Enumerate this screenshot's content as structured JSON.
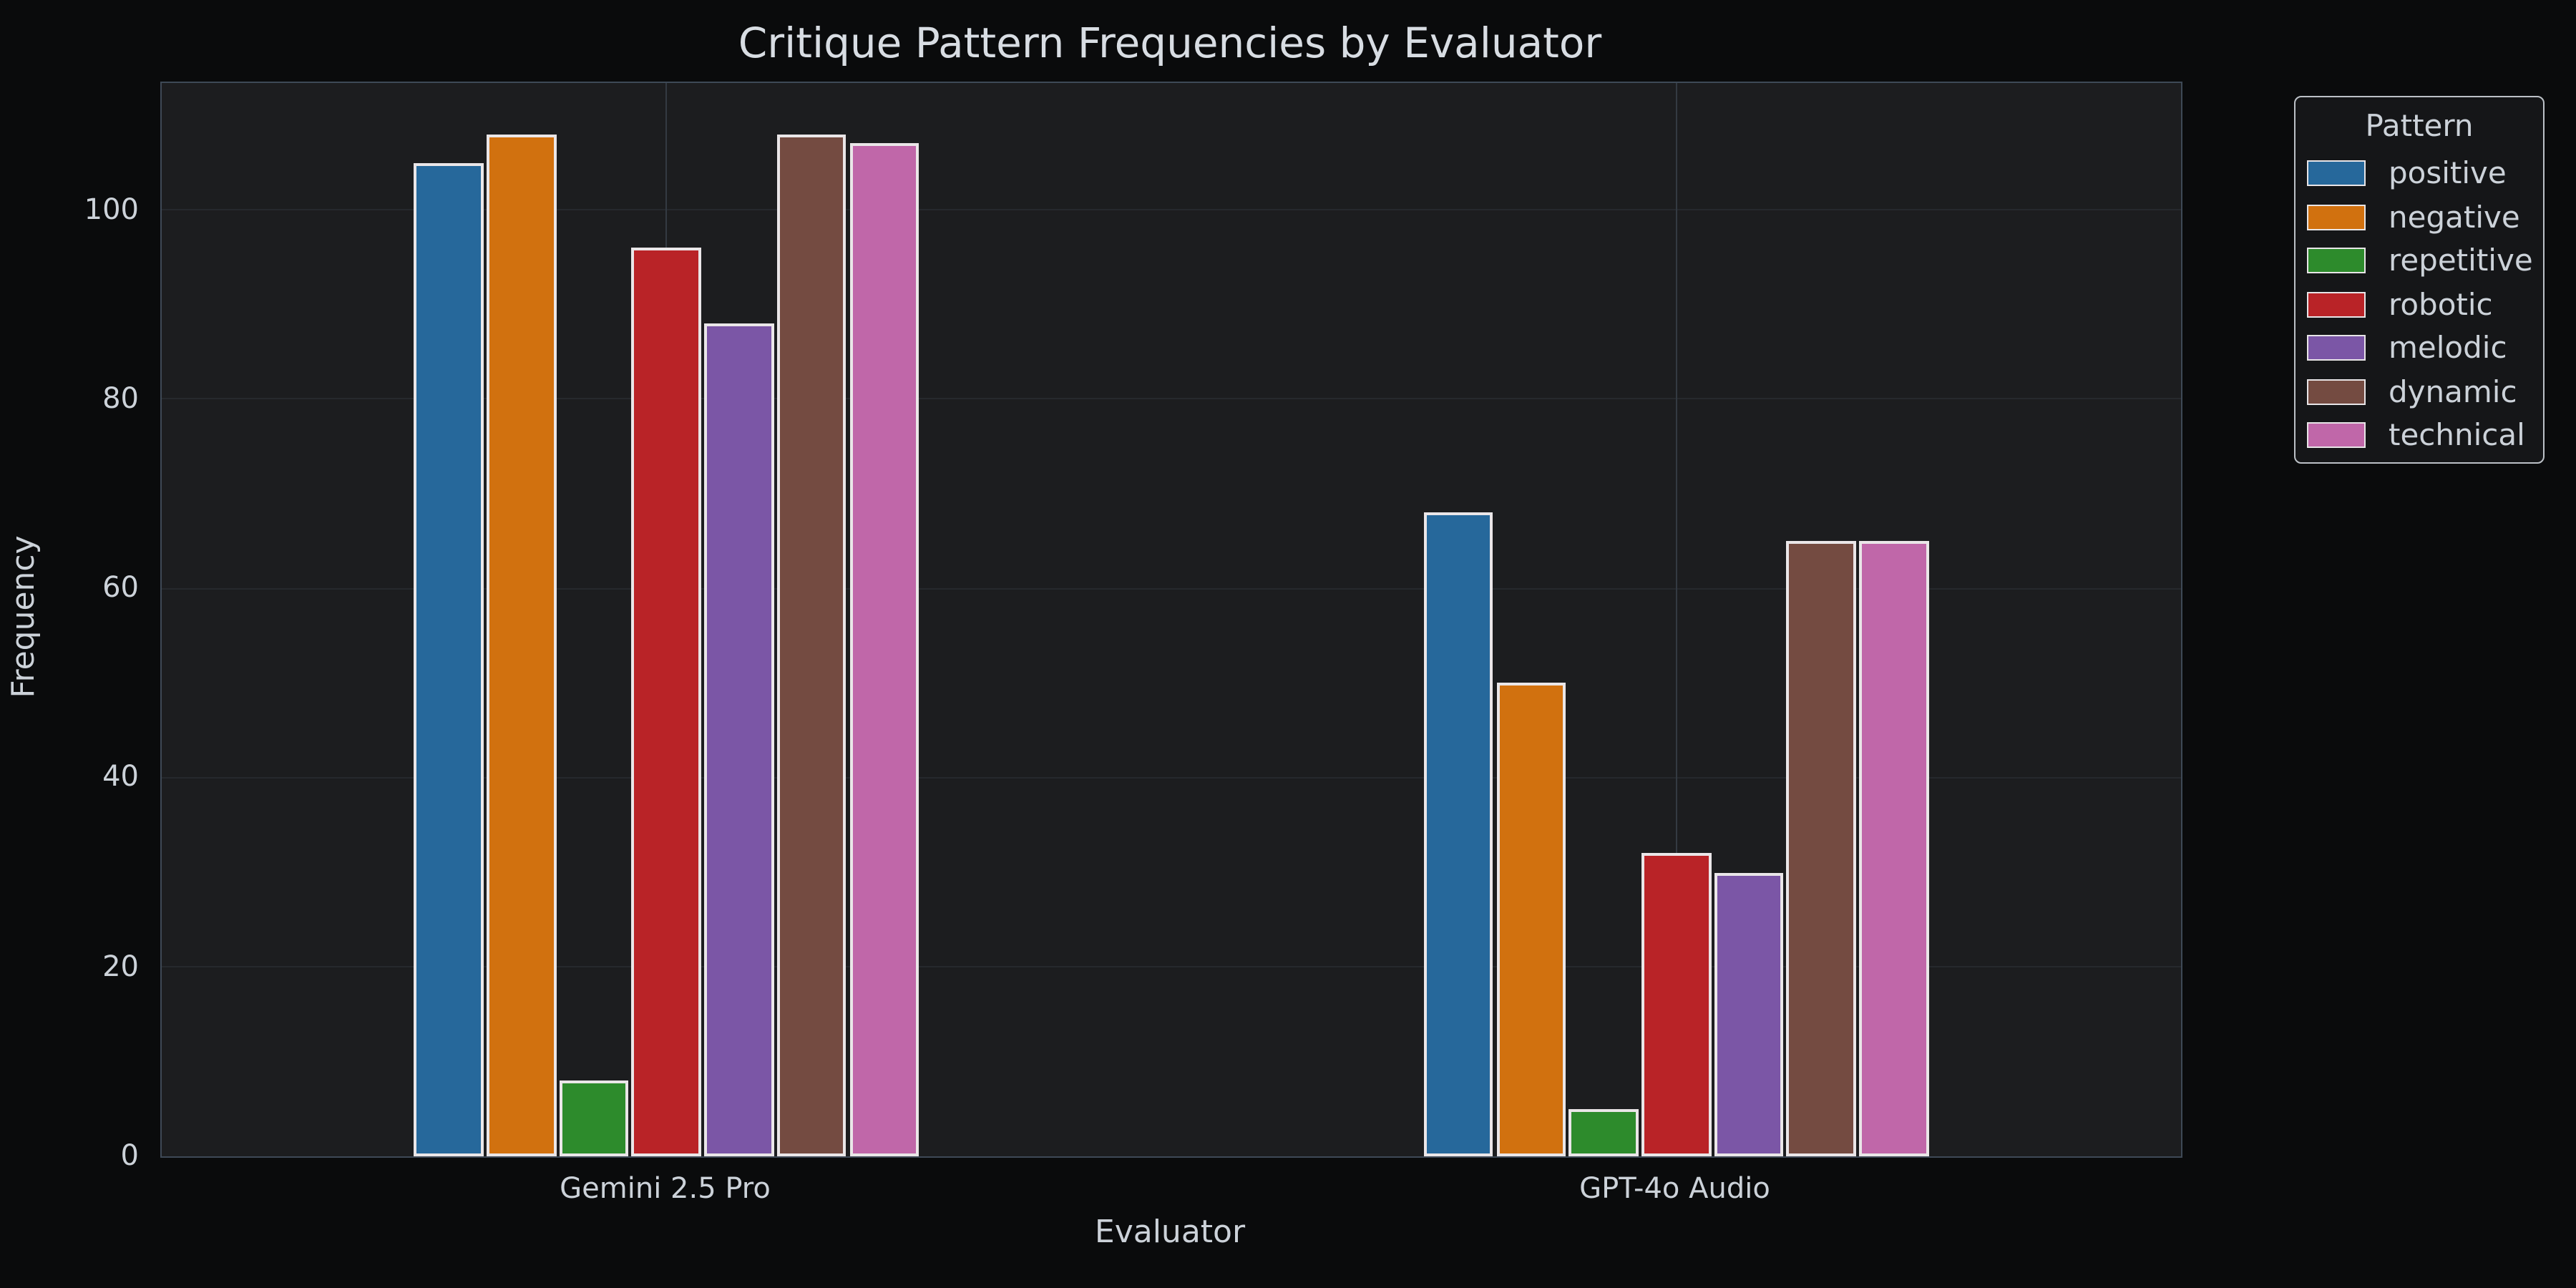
{
  "title": "Critique Pattern Frequencies by Evaluator",
  "x_axis": {
    "label": "Evaluator",
    "tick_labels": [
      "Gemini 2.5 Pro",
      "GPT-4o Audio"
    ]
  },
  "y_axis": {
    "label": "Frequency",
    "ticks": [
      0,
      20,
      40,
      60,
      80,
      100
    ]
  },
  "legend": {
    "title": "Pattern"
  },
  "chart_data": {
    "type": "bar",
    "title": "Critique Pattern Frequencies by Evaluator",
    "xlabel": "Evaluator",
    "ylabel": "Frequency",
    "categories": [
      "Gemini 2.5 Pro",
      "GPT-4o Audio"
    ],
    "series": [
      {
        "name": "positive",
        "color": "#26689b",
        "values": [
          105,
          68
        ]
      },
      {
        "name": "negative",
        "color": "#d1710f",
        "values": [
          108,
          50
        ]
      },
      {
        "name": "repetitive",
        "color": "#2d8b2c",
        "values": [
          8,
          5
        ]
      },
      {
        "name": "robotic",
        "color": "#b92327",
        "values": [
          96,
          32
        ]
      },
      {
        "name": "melodic",
        "color": "#7b56a6",
        "values": [
          88,
          30
        ]
      },
      {
        "name": "dynamic",
        "color": "#744b41",
        "values": [
          108,
          65
        ]
      },
      {
        "name": "technical",
        "color": "#c067a9",
        "values": [
          107,
          65
        ]
      }
    ],
    "ylim": [
      0,
      113.4
    ],
    "yticks": [
      0,
      20,
      40,
      60,
      80,
      100
    ],
    "grid": true,
    "legend_title": "Pattern",
    "legend_position": "outside upper right",
    "bar_group_width_fraction": 0.5
  },
  "style": {
    "figure_bg": "#0a0b0c",
    "axes_bg": "#1c1d1f",
    "grid_color_h": "#26292d",
    "grid_color_v": "#333a42",
    "spine_color": "#3e4956",
    "text_color": "#ccd2d9",
    "title_color": "#d8dde3",
    "bar_edge_color": "#eae6e8",
    "legend_bg": "#151618",
    "legend_border": "#bcc1c7"
  }
}
